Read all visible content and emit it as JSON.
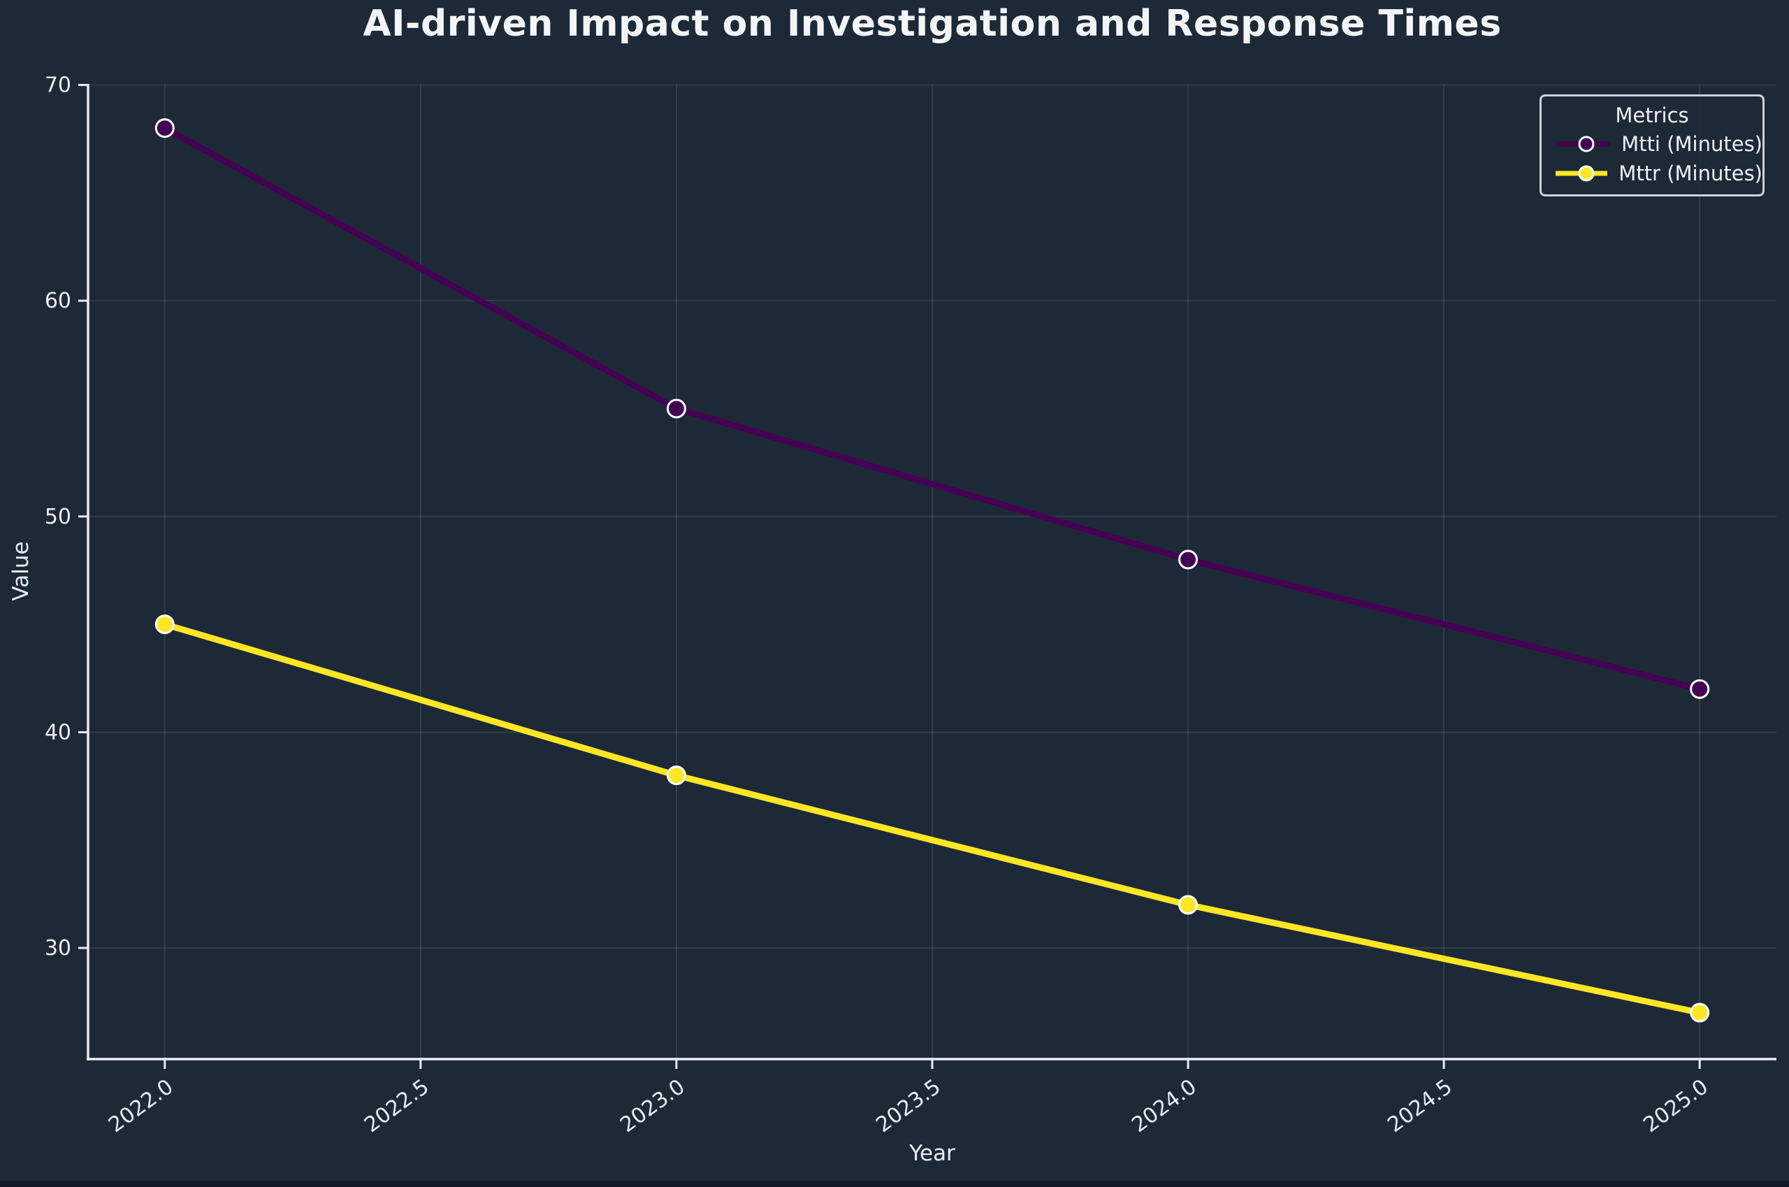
{
  "figure": {
    "background_color": "#1e2937",
    "bottom_strip_color": "#111a26",
    "text_color": "#e9eef3",
    "grid_color": "rgba(255,255,255,0.09)",
    "spine_color": "#e8ecf0",
    "marker_edge_color": "#ffffff"
  },
  "chart_data": {
    "type": "line",
    "title": "AI-driven Impact on Investigation and Response Times",
    "xlabel": "Year",
    "ylabel": "Value",
    "x": [
      2022,
      2023,
      2024,
      2025
    ],
    "series": [
      {
        "name": "Mtti (Minutes)",
        "values": [
          68,
          55,
          48,
          42
        ],
        "color": "#440154"
      },
      {
        "name": "Mttr (Minutes)",
        "values": [
          45,
          38,
          32,
          27
        ],
        "color": "#fde725"
      }
    ],
    "xlim": [
      2021.85,
      2025.15
    ],
    "ylim": [
      24.85,
      70.05
    ],
    "x_ticks": {
      "values": [
        2022.0,
        2022.5,
        2023.0,
        2023.5,
        2024.0,
        2024.5,
        2025.0
      ],
      "labels": [
        "2022.0",
        "2022.5",
        "2023.0",
        "2023.5",
        "2024.0",
        "2024.5",
        "2025.0"
      ]
    },
    "y_ticks": {
      "values": [
        30,
        40,
        50,
        60,
        70
      ],
      "labels": [
        "30",
        "40",
        "50",
        "60",
        "70"
      ]
    },
    "grid": true,
    "legend_position": "upper right"
  },
  "legend": {
    "title": "Metrics",
    "entries": [
      {
        "label": "Mtti (Minutes)",
        "color": "#440154"
      },
      {
        "label": "Mttr (Minutes)",
        "color": "#fde725"
      }
    ]
  }
}
